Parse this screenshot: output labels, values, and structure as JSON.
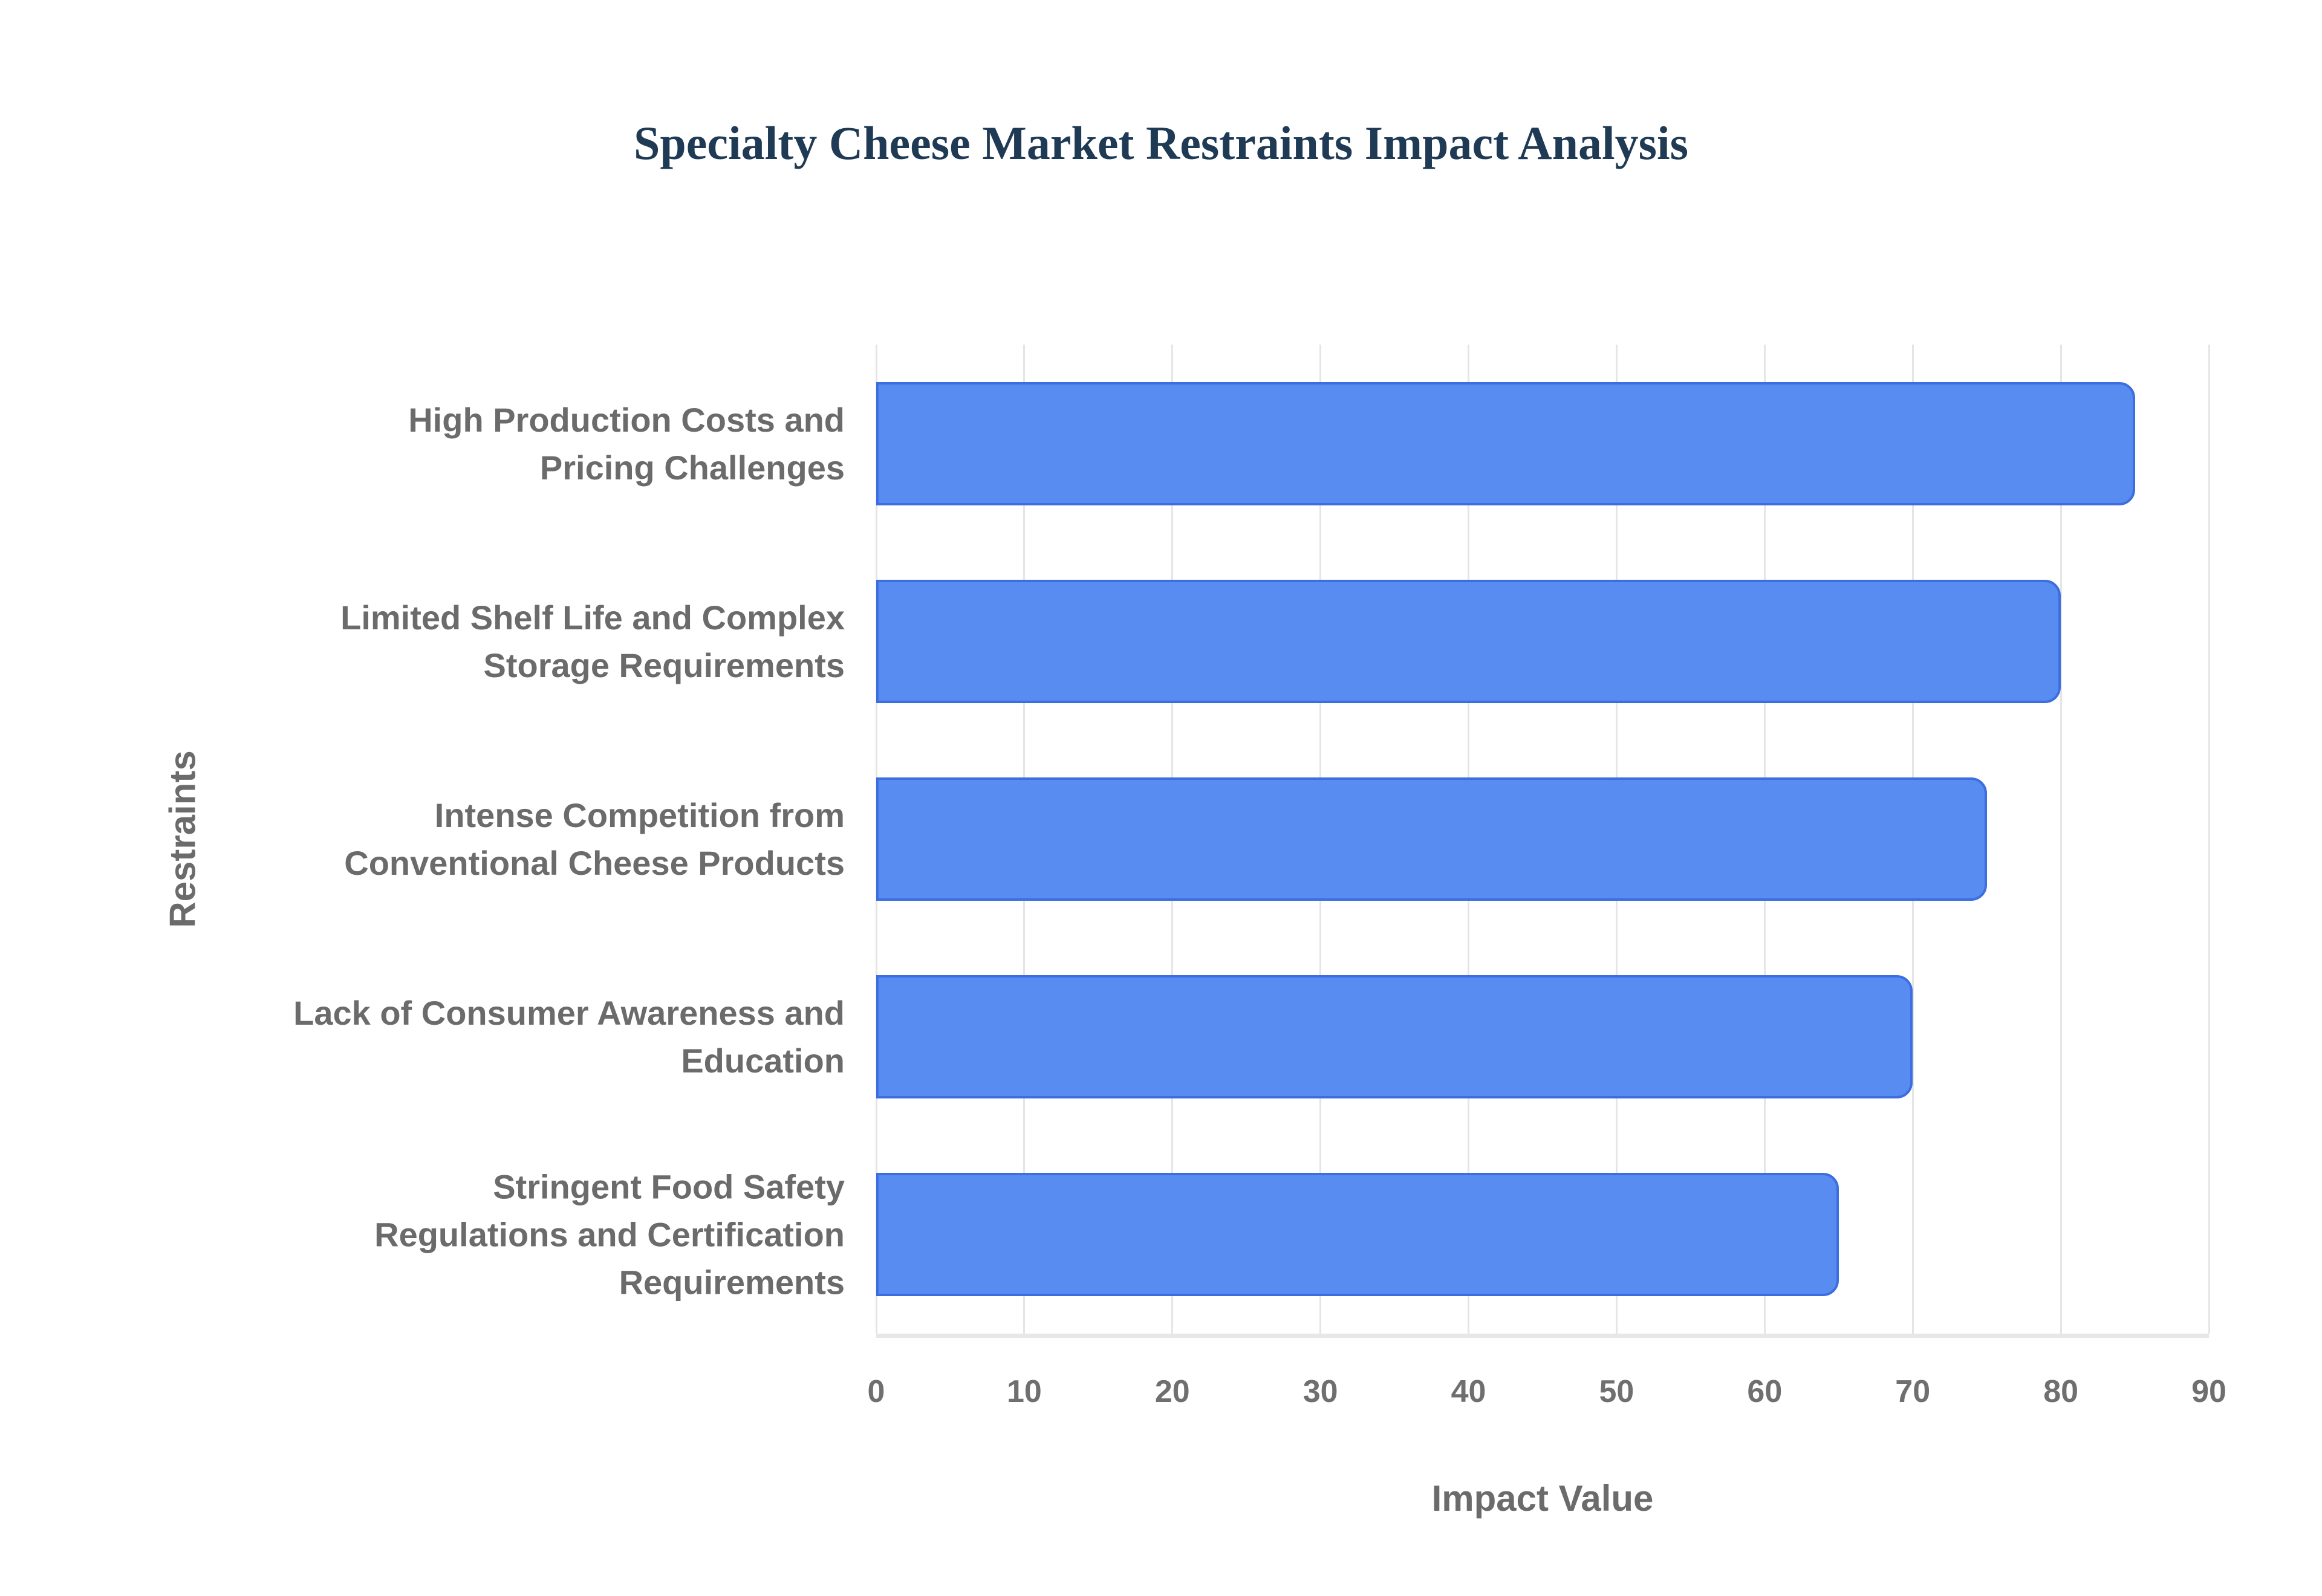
{
  "title": "Specialty Cheese Market Restraints Impact Analysis",
  "title_color": "#1f3a54",
  "axis": {
    "x_title": "Impact Value",
    "y_title": "Restraints",
    "tick_labels": [
      "0",
      "10",
      "20",
      "30",
      "40",
      "50",
      "60",
      "70",
      "80",
      "90"
    ],
    "label_color": "#6b6b6b",
    "tick_color": "#6f6f6f",
    "gridline_color": "#e5e5e5"
  },
  "bar_style": {
    "fill": "#588cf0",
    "stroke": "#3c6ee1"
  },
  "chart_data": {
    "type": "bar",
    "orientation": "horizontal",
    "title": "Specialty Cheese Market Restraints Impact Analysis",
    "xlabel": "Impact Value",
    "ylabel": "Restraints",
    "xlim": [
      0,
      90
    ],
    "xticks": [
      0,
      10,
      20,
      30,
      40,
      50,
      60,
      70,
      80,
      90
    ],
    "grid": true,
    "legend": false,
    "categories": [
      "High Production Costs and Pricing Challenges",
      "Limited Shelf Life and Complex Storage Requirements",
      "Intense Competition from Conventional Cheese Products",
      "Lack of Consumer Awareness and Education",
      "Stringent Food Safety Regulations and Certification Requirements"
    ],
    "category_label_lines": [
      [
        "High Production Costs and",
        "Pricing Challenges"
      ],
      [
        "Limited Shelf Life and Complex",
        "Storage Requirements"
      ],
      [
        "Intense Competition from",
        "Conventional Cheese Products"
      ],
      [
        "Lack of Consumer Awareness and",
        "Education"
      ],
      [
        "Stringent Food Safety",
        "Regulations and Certification",
        "Requirements"
      ]
    ],
    "values": [
      85,
      80,
      75,
      70,
      65
    ]
  }
}
